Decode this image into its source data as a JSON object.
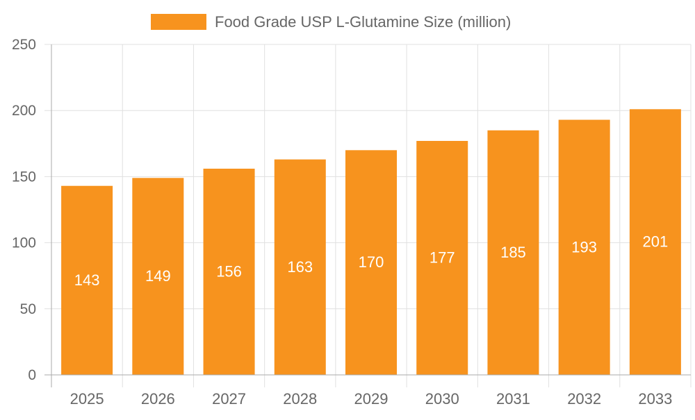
{
  "chart_data": {
    "type": "bar",
    "title": "",
    "xlabel": "",
    "ylabel": "",
    "categories": [
      "2025",
      "2026",
      "2027",
      "2028",
      "2029",
      "2030",
      "2031",
      "2032",
      "2033"
    ],
    "series": [
      {
        "name": "Food Grade USP L-Glutamine Size (million)",
        "values": [
          143,
          149,
          156,
          163,
          170,
          177,
          185,
          193,
          201
        ],
        "color": "#F7931E"
      }
    ],
    "ylim": [
      0,
      250
    ],
    "yticks": [
      0,
      50,
      100,
      150,
      200,
      250
    ],
    "grid": true,
    "legend_position": "top-center",
    "data_labels": true
  }
}
